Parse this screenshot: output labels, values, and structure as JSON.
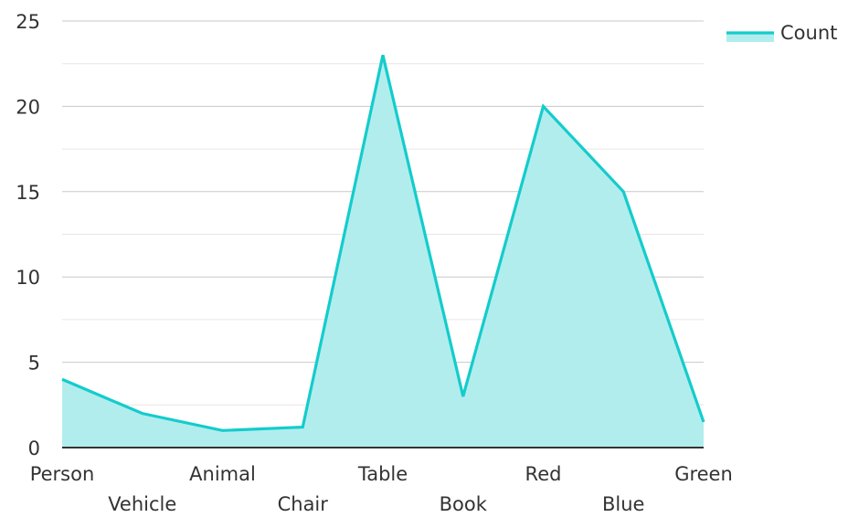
{
  "chart_data": {
    "type": "area",
    "categories": [
      "Person",
      "Vehicle",
      "Animal",
      "Chair",
      "Table",
      "Book",
      "Red",
      "Blue",
      "Green"
    ],
    "series": [
      {
        "name": "Count",
        "values": [
          4,
          2,
          1,
          1.2,
          23,
          3,
          20,
          15,
          1.5
        ],
        "color": "#14cccc",
        "fill": "#b2eded"
      }
    ],
    "ylim": [
      0,
      25
    ],
    "yticks": [
      0,
      5,
      10,
      15,
      20,
      25
    ],
    "grid": true,
    "minor_grid": true,
    "legend_position": "top-right",
    "xlabel": "",
    "ylabel": "",
    "title": ""
  }
}
